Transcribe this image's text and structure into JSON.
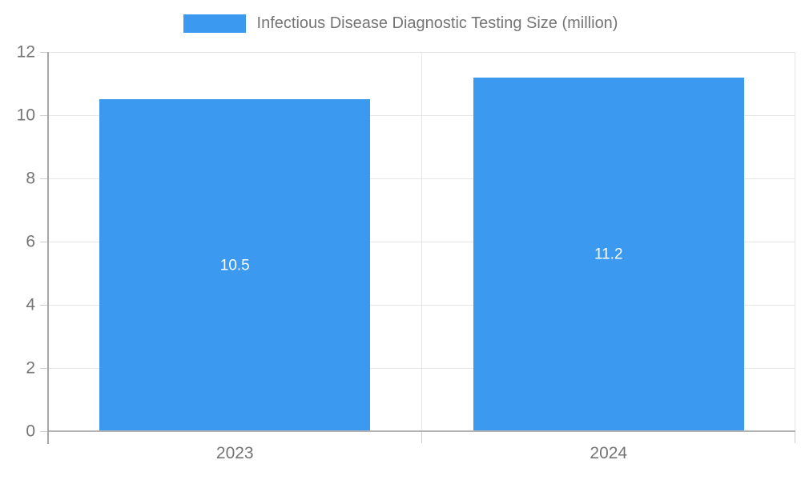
{
  "legend": {
    "label": "Infectious Disease Diagnostic Testing Size (million)"
  },
  "colors": {
    "bar": "#3b99f0",
    "grid": "#e6e6e6",
    "y_axis": "#a6a6a6",
    "x_axis": "#b3b3b3",
    "tick_mark": "#cccccc",
    "axis_text": "#757575",
    "bar_label_text": "#ffffff",
    "background": "#ffffff"
  },
  "chart_data": {
    "type": "bar",
    "categories": [
      "2023",
      "2024"
    ],
    "values": [
      10.5,
      11.2
    ],
    "data_labels": [
      "10.5",
      "11.2"
    ],
    "series_name": "Infectious Disease Diagnostic Testing Size (million)",
    "title": "",
    "xlabel": "",
    "ylabel": "",
    "ylim": [
      0,
      12
    ],
    "yticks": [
      0,
      2,
      4,
      6,
      8,
      10,
      12
    ],
    "grid": true,
    "legend_position": "top",
    "bar_color": "#3b99f0"
  }
}
